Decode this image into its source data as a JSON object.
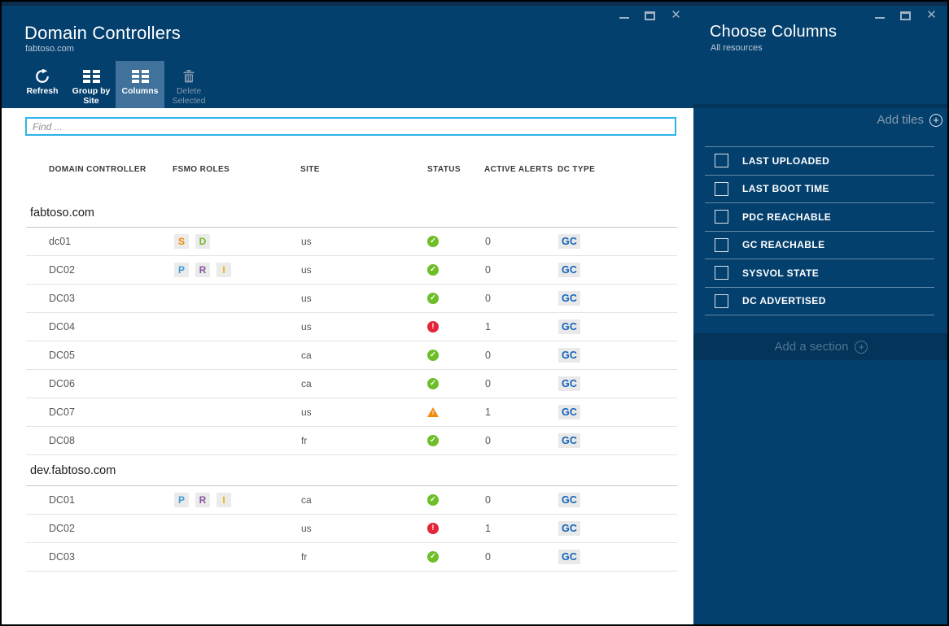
{
  "left_window": {
    "title": "Domain Controllers",
    "subtitle": "fabtoso.com",
    "toolbar": [
      {
        "label": "Refresh",
        "icon": "refresh-icon",
        "state": "normal"
      },
      {
        "label": "Group by\nSite",
        "icon": "group-by-site-grid-icon",
        "state": "normal"
      },
      {
        "label": "Columns",
        "icon": "columns-grid-icon",
        "state": "selected"
      },
      {
        "label": "Delete\nSelected",
        "icon": "trash-icon",
        "state": "disabled"
      }
    ],
    "search": {
      "placeholder": "Find ..."
    },
    "table": {
      "columns": [
        "DOMAIN CONTROLLER",
        "FSMO ROLES",
        "SITE",
        "STATUS",
        "ACTIVE ALERTS",
        "DC TYPE"
      ],
      "column_offsets": [
        28,
        180,
        337,
        493,
        563,
        653
      ],
      "groups": [
        {
          "name": "fabtoso.com",
          "rows": [
            {
              "name": "dc01",
              "fsmo": [
                "S",
                "D"
              ],
              "site": "us",
              "status": "ok",
              "alerts": "0",
              "dc_type": "GC"
            },
            {
              "name": "DC02",
              "fsmo": [
                "P",
                "R",
                "I"
              ],
              "site": "us",
              "status": "ok",
              "alerts": "0",
              "dc_type": "GC"
            },
            {
              "name": "DC03",
              "fsmo": [],
              "site": "us",
              "status": "ok",
              "alerts": "0",
              "dc_type": "GC"
            },
            {
              "name": "DC04",
              "fsmo": [],
              "site": "us",
              "status": "error",
              "alerts": "1",
              "dc_type": "GC"
            },
            {
              "name": "DC05",
              "fsmo": [],
              "site": "ca",
              "status": "ok",
              "alerts": "0",
              "dc_type": "GC"
            },
            {
              "name": "DC06",
              "fsmo": [],
              "site": "ca",
              "status": "ok",
              "alerts": "0",
              "dc_type": "GC"
            },
            {
              "name": "DC07",
              "fsmo": [],
              "site": "us",
              "status": "warning",
              "alerts": "1",
              "dc_type": "GC"
            },
            {
              "name": "DC08",
              "fsmo": [],
              "site": "fr",
              "status": "ok",
              "alerts": "0",
              "dc_type": "GC"
            }
          ]
        },
        {
          "name": "dev.fabtoso.com",
          "rows": [
            {
              "name": "DC01",
              "fsmo": [
                "P",
                "R",
                "I"
              ],
              "site": "ca",
              "status": "ok",
              "alerts": "0",
              "dc_type": "GC"
            },
            {
              "name": "DC02",
              "fsmo": [],
              "site": "us",
              "status": "error",
              "alerts": "1",
              "dc_type": "GC"
            },
            {
              "name": "DC03",
              "fsmo": [],
              "site": "fr",
              "status": "ok",
              "alerts": "0",
              "dc_type": "GC"
            }
          ]
        }
      ]
    }
  },
  "right_window": {
    "title": "Choose Columns",
    "subtitle": "All resources",
    "add_tiles_label": "Add tiles",
    "options": [
      "LAST UPLOADED",
      "LAST BOOT TIME",
      "PDC REACHABLE",
      "GC REACHABLE",
      "SYSVOL STATE",
      "DC ADVERTISED"
    ],
    "add_section_label": "Add a section"
  },
  "colors": {
    "header_blue": "#04406e",
    "selected_toolbar_button": "#40729c",
    "find_border": "#2fb4e9",
    "badge_bg": "#ebebeb",
    "badge_colors": {
      "S": "#f08a00",
      "D": "#76b72a",
      "P": "#3c9bd5",
      "R": "#8a57a2",
      "I": "#efb400"
    },
    "status_colors": {
      "ok": "#6ebe28",
      "error": "#e32439",
      "warning": "#f18b12"
    },
    "gc_text": "#1464bc"
  }
}
